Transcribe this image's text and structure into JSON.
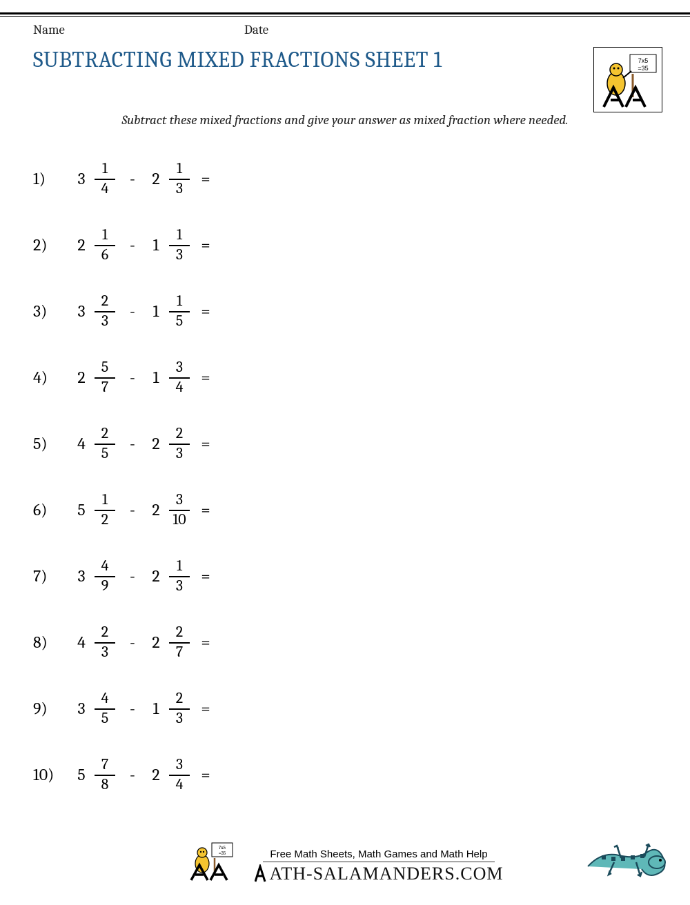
{
  "meta": {
    "name_label": "Name",
    "date_label": "Date"
  },
  "title": "SUBTRACTING MIXED FRACTIONS SHEET 1",
  "instructions": "Subtract these mixed fractions and give your answer as mixed fraction where needed.",
  "colors": {
    "title": "#1f5a8a",
    "text": "#000000",
    "rule": "#000000",
    "background": "#ffffff",
    "logo_yellow": "#f4c430",
    "logo_blue": "#3a7aa8",
    "lizard_teal": "#5fb8b8",
    "lizard_dark": "#1a4a5a"
  },
  "typography": {
    "title_fontsize": 32,
    "body_fontsize": 24,
    "fraction_fontsize": 22,
    "instructions_fontsize": 19,
    "meta_fontsize": 19
  },
  "symbols": {
    "minus": "-",
    "equals": "="
  },
  "problems": [
    {
      "n": "1)",
      "a_whole": "3",
      "a_num": "1",
      "a_den": "4",
      "b_whole": "2",
      "b_num": "1",
      "b_den": "3"
    },
    {
      "n": "2)",
      "a_whole": "2",
      "a_num": "1",
      "a_den": "6",
      "b_whole": "1",
      "b_num": "1",
      "b_den": "3"
    },
    {
      "n": "3)",
      "a_whole": "3",
      "a_num": "2",
      "a_den": "3",
      "b_whole": "1",
      "b_num": "1",
      "b_den": "5"
    },
    {
      "n": "4)",
      "a_whole": "2",
      "a_num": "5",
      "a_den": "7",
      "b_whole": "1",
      "b_num": "3",
      "b_den": "4"
    },
    {
      "n": "5)",
      "a_whole": "4",
      "a_num": "2",
      "a_den": "5",
      "b_whole": "2",
      "b_num": "2",
      "b_den": "3"
    },
    {
      "n": "6)",
      "a_whole": "5",
      "a_num": "1",
      "a_den": "2",
      "b_whole": "2",
      "b_num": "3",
      "b_den": "10"
    },
    {
      "n": "7)",
      "a_whole": "3",
      "a_num": "4",
      "a_den": "9",
      "b_whole": "2",
      "b_num": "1",
      "b_den": "3"
    },
    {
      "n": "8)",
      "a_whole": "4",
      "a_num": "2",
      "a_den": "3",
      "b_whole": "2",
      "b_num": "2",
      "b_den": "7"
    },
    {
      "n": "9)",
      "a_whole": "3",
      "a_num": "4",
      "a_den": "5",
      "b_whole": "1",
      "b_num": "2",
      "b_den": "3"
    },
    {
      "n": "10)",
      "a_whole": "5",
      "a_num": "7",
      "a_den": "8",
      "b_whole": "2",
      "b_num": "3",
      "b_den": "4"
    }
  ],
  "footer": {
    "tagline": "Free Math Sheets, Math Games and Math Help",
    "brand": "ATH-SALAMANDERS.COM"
  },
  "logo_board_text": "7x5=35"
}
